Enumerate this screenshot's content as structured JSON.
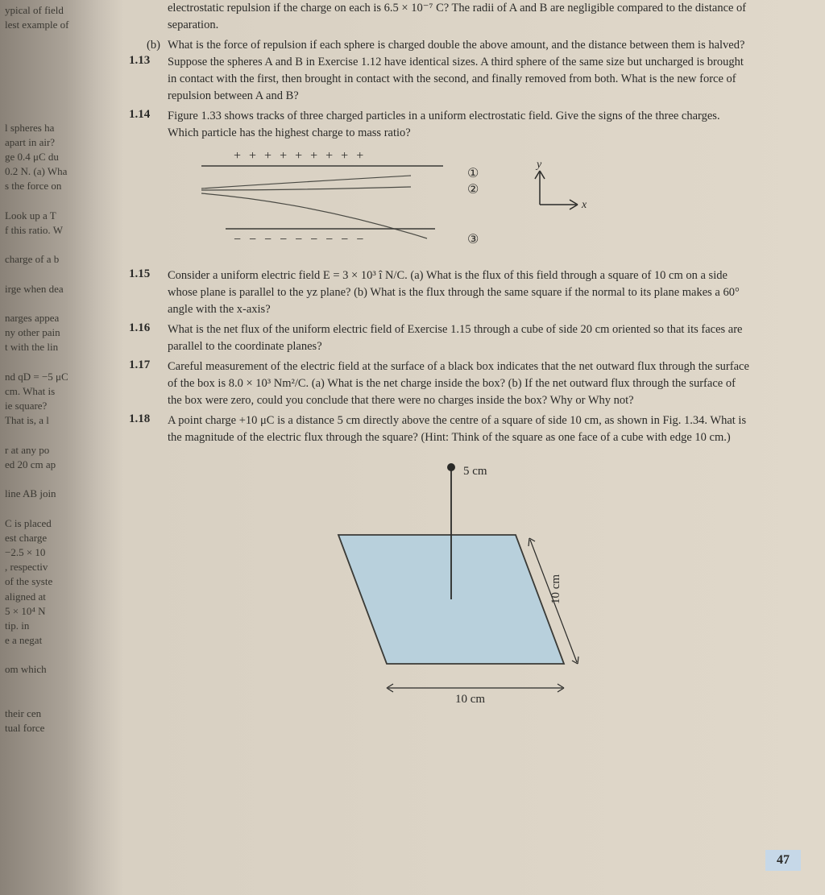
{
  "leftMargin": {
    "lines": [
      "ypical of field",
      "lest example of",
      "",
      "",
      "",
      "",
      "",
      "",
      "l spheres ha",
      "apart in air?",
      "ge 0.4 μC du",
      "0.2 N. (a) Wha",
      "s the force on",
      "",
      "Look up a T",
      "f this ratio. W",
      "",
      "charge of a b",
      "",
      "irge when dea",
      "",
      "narges appea",
      "ny other pain",
      "t with the lin",
      "",
      "nd qD = −5 μC",
      "cm. What is",
      "ie square?",
      "That is, a l",
      "",
      "r at any po",
      "ed 20 cm ap",
      "",
      "line AB join",
      "",
      "C is placed",
      "est charge",
      "−2.5 × 10",
      ", respectiv",
      "of the syste",
      "aligned at",
      "5 × 10⁴ N",
      "tip. in",
      "e a negat",
      "",
      "om which",
      "",
      "",
      "their cen",
      "tual force"
    ]
  },
  "problems": {
    "intro": "electrostatic repulsion if the charge on each is 6.5 × 10⁻⁷ C? The radii of A and B are negligible compared to the distance of separation.",
    "intro_b": "What is the force of repulsion if each sphere is charged double the above amount, and the distance between them is halved?",
    "p113": {
      "num": "1.13",
      "text": "Suppose the spheres A and B in Exercise 1.12 have identical sizes. A third sphere of the same size but uncharged is brought in contact with the first, then brought in contact with the second, and finally removed from both. What is the new force of repulsion between A and B?"
    },
    "p114": {
      "num": "1.14",
      "text": "Figure 1.33 shows tracks of three charged particles in a uniform electrostatic field. Give the signs of the three charges. Which particle has the highest charge to mass ratio?"
    },
    "p115": {
      "num": "1.15",
      "text": "Consider a uniform electric field E = 3 × 10³ î N/C. (a) What is the flux of this field through a square of 10 cm on a side whose plane is parallel to the yz plane? (b) What is the flux through the same square if the normal to its plane makes a 60° angle with the x-axis?"
    },
    "p116": {
      "num": "1.16",
      "text": "What is the net flux of the uniform electric field of Exercise 1.15 through a cube of side 20 cm oriented so that its faces are parallel to the coordinate planes?"
    },
    "p117": {
      "num": "1.17",
      "text": "Careful measurement of the electric field at the surface of a black box indicates that the net outward flux through the surface of the box is 8.0 × 10³ Nm²/C. (a) What is the net charge inside the box? (b) If the net outward flux through the surface of the box were zero, could you conclude that there were no charges inside the box? Why or Why not?"
    },
    "p118": {
      "num": "1.18",
      "text": "A point charge +10 μC is a distance 5 cm directly above the centre of a square of side 10 cm, as shown in Fig. 1.34. What is the magnitude of the electric flux through the square? (Hint: Think of the square as one face of a cube with edge 10 cm.)"
    }
  },
  "figure133": {
    "plusRow": "+  +  +  +  +  +  +  +  +",
    "minusRow": "−  −  −  −  −  −  −  −  −",
    "labels": [
      "①",
      "②",
      "③"
    ],
    "yLabel": "y",
    "xLabel": "x",
    "colors": {
      "line": "#3a3a36",
      "track": "#4a4a44"
    }
  },
  "figure134": {
    "label5cm": "5 cm",
    "label10cmBottom": "10 cm",
    "label10cmSide": "10 cm",
    "colors": {
      "fill": "#b8d0dc",
      "stroke": "#3a3a36",
      "charge": "#2a2a28"
    }
  },
  "pageNumber": "47"
}
